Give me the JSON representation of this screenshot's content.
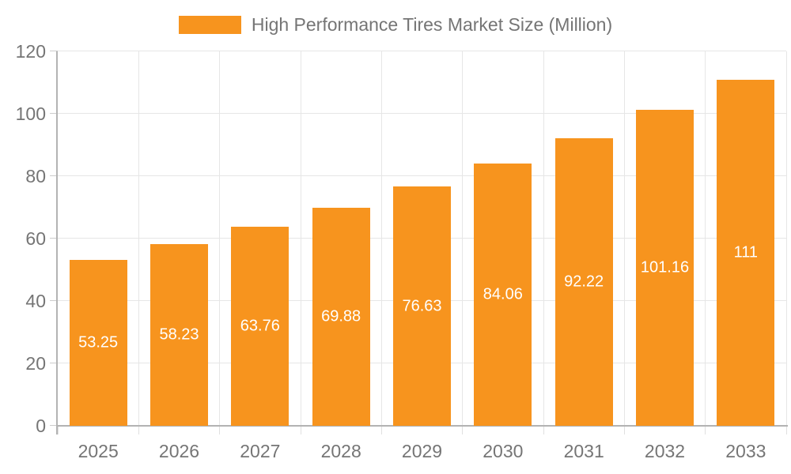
{
  "chart_data": {
    "type": "bar",
    "title": "High Performance Tires Market Size (Million)",
    "categories": [
      "2025",
      "2026",
      "2027",
      "2028",
      "2029",
      "2030",
      "2031",
      "2032",
      "2033"
    ],
    "series": [
      {
        "name": "High Performance Tires Market Size (Million)",
        "values": [
          53.25,
          58.23,
          63.76,
          69.88,
          76.63,
          84.06,
          92.22,
          101.16,
          111
        ]
      }
    ],
    "xlabel": "",
    "ylabel": "",
    "ylim": [
      0,
      120
    ],
    "yticks": [
      0,
      20,
      40,
      60,
      80,
      100,
      120
    ],
    "grid": true,
    "legend_position": "top-center",
    "data_labels_position": "inside-center",
    "colors": {
      "bar": "#F7941E",
      "data_label": "#ffffff",
      "axis_text": "#757575",
      "gridline": "#e6e6e6",
      "axis_line": "#b3b3b3",
      "tick_y": "#cccccc",
      "tick_x": "#e0e0e0",
      "background": "#ffffff"
    }
  }
}
